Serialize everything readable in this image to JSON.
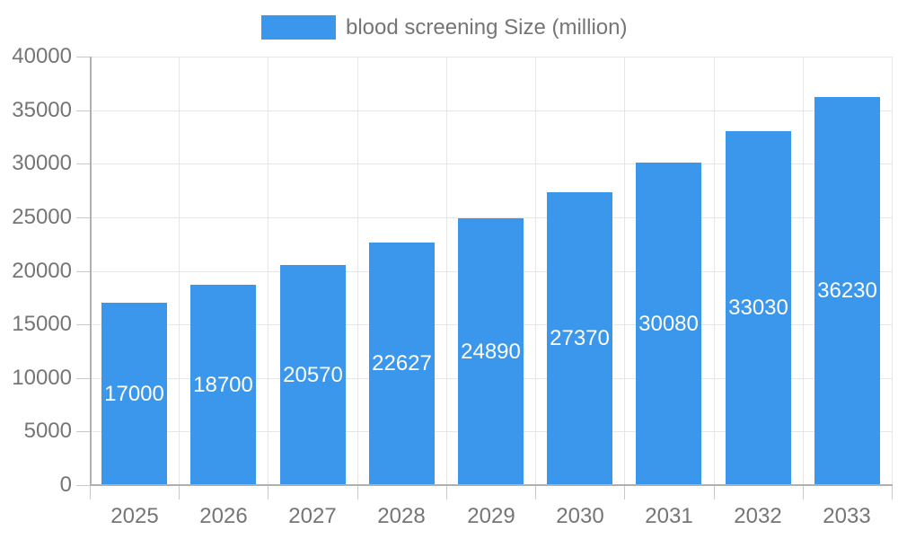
{
  "legend": {
    "label": "blood screening Size (million)"
  },
  "chart_data": {
    "type": "bar",
    "title": "",
    "legend": "blood screening Size (million)",
    "legend_position": "top-center",
    "categories": [
      "2025",
      "2026",
      "2027",
      "2028",
      "2029",
      "2030",
      "2031",
      "2032",
      "2033"
    ],
    "series": [
      {
        "name": "blood screening Size (million)",
        "values": [
          17000,
          18700,
          20570,
          22627,
          24890,
          27370,
          30080,
          33030,
          36230
        ]
      }
    ],
    "data_labels": [
      "17000",
      "18700",
      "20570",
      "22627",
      "24890",
      "27370",
      "30080",
      "33030",
      "36230"
    ],
    "xlabel": "",
    "ylabel": "",
    "ylim": [
      0,
      40000
    ],
    "yticks": [
      0,
      5000,
      10000,
      15000,
      20000,
      25000,
      30000,
      35000,
      40000
    ],
    "grid": true,
    "colors": {
      "bar": "#3b97ec",
      "bar_label": "#ffffff",
      "axis_text": "#757575",
      "gridline": "#e6e6e6",
      "axis_line": "#b0b0b0",
      "tick": "#c9c9c9",
      "background": "#ffffff"
    }
  }
}
